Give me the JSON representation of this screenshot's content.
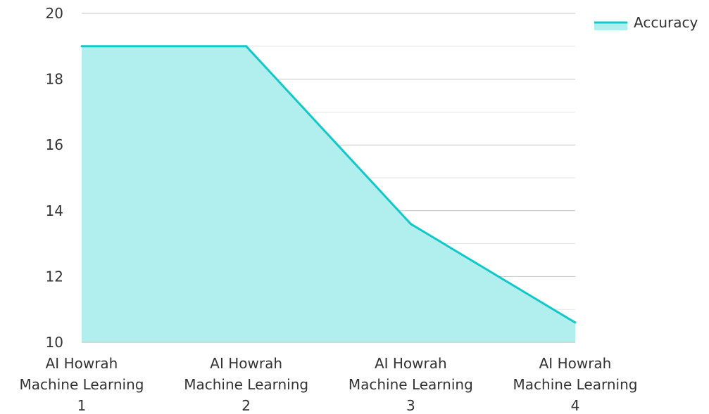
{
  "chart_data": {
    "type": "area",
    "title": "",
    "xlabel": "",
    "ylabel": "",
    "categories": [
      [
        "AI Howrah",
        "Machine Learning",
        "1"
      ],
      [
        "AI Howrah",
        "Machine Learning",
        "2"
      ],
      [
        "AI Howrah",
        "Machine Learning",
        "3"
      ],
      [
        "AI Howrah",
        "Machine Learning",
        "4"
      ]
    ],
    "series": [
      {
        "name": "Accuracy",
        "values": [
          19,
          19,
          13.6,
          10.6
        ]
      }
    ],
    "ylim": [
      10,
      20
    ],
    "yticks": [
      "10",
      "12",
      "14",
      "16",
      "18",
      "20"
    ],
    "minor_grid_step": 1,
    "grid": true,
    "legend_position": "top-right",
    "colors": {
      "line": "#12c8c8",
      "fill": "#b1eeee",
      "grid_major": "#c4c4c4",
      "grid_minor": "#e3e3e3",
      "text": "#333333"
    }
  }
}
